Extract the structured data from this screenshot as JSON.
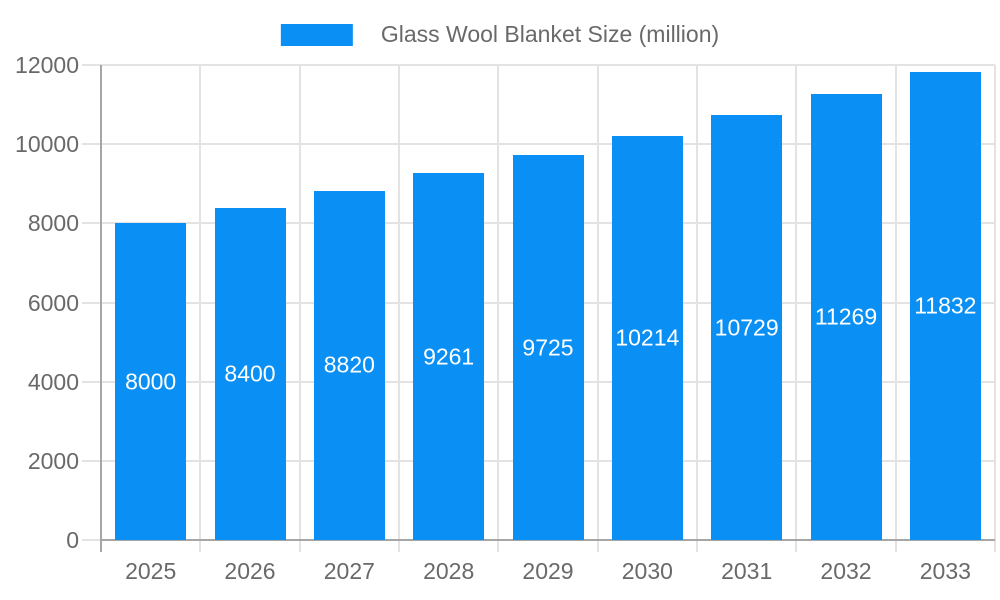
{
  "chart_data": {
    "type": "bar",
    "title": "Glass Wool Blanket Size (million)",
    "categories": [
      "2025",
      "2026",
      "2027",
      "2028",
      "2029",
      "2030",
      "2031",
      "2032",
      "2033"
    ],
    "values": [
      8000,
      8400,
      8820,
      9261,
      9725,
      10214,
      10729,
      11269,
      11832
    ],
    "bar_labels": [
      "8000",
      "8400",
      "8820",
      "9261",
      "9725",
      "10214",
      "10729",
      "11269",
      "11832"
    ],
    "xlabel": "",
    "ylabel": "",
    "ylim": [
      0,
      12000
    ],
    "yticks": [
      0,
      2000,
      4000,
      6000,
      8000,
      10000,
      12000
    ],
    "ytick_labels": [
      "0",
      "2000",
      "4000",
      "6000",
      "8000",
      "10000",
      "12000"
    ],
    "grid": true,
    "legend_position": "top-center",
    "colors": {
      "bar": "#0a90f5",
      "bar_label": "#ffffff",
      "axis_line": "#a6a6a6",
      "gridline": "#e3e3e3",
      "tick_label": "#696969",
      "legend_text": "#696969",
      "background": "#ffffff"
    }
  },
  "legend": {
    "label": "Glass Wool Blanket Size (million)"
  }
}
